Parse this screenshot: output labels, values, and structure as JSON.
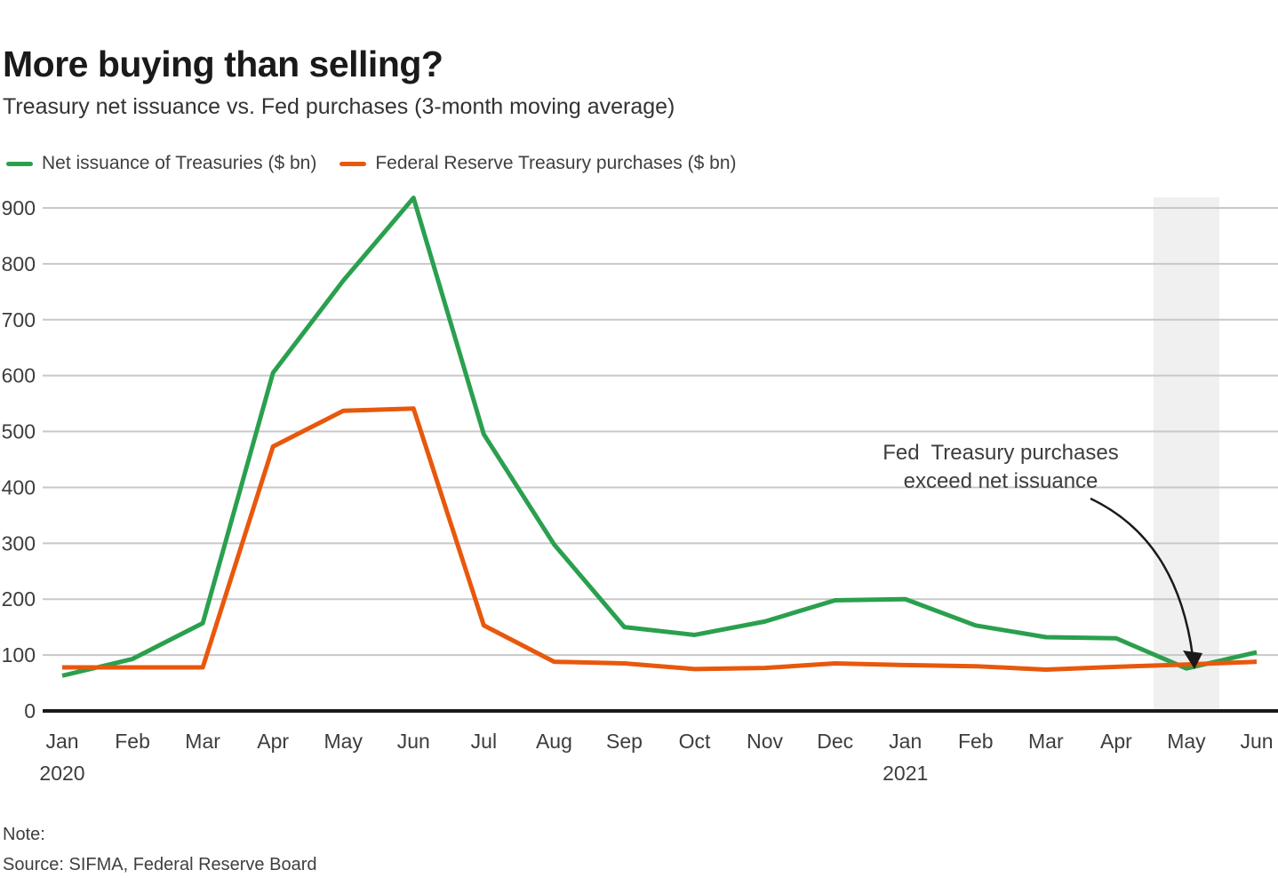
{
  "header": {
    "title": "More buying than selling?",
    "subtitle": "Treasury net issuance vs. Fed purchases (3-month moving average)"
  },
  "chart_data": {
    "type": "line",
    "x": [
      "Jan 2020",
      "Feb",
      "Mar",
      "Apr",
      "May",
      "Jun",
      "Jul",
      "Aug",
      "Sep",
      "Oct",
      "Nov",
      "Dec",
      "Jan 2021",
      "Feb",
      "Mar",
      "Apr",
      "May",
      "Jun"
    ],
    "series": [
      {
        "name": "Net issuance of Treasuries ($ bn)",
        "color": "#2aa04e",
        "values": [
          63,
          93,
          157,
          605,
          770,
          918,
          495,
          298,
          150,
          136,
          160,
          198,
          200,
          153,
          132,
          130,
          76,
          105
        ]
      },
      {
        "name": "Federal Reserve Treasury purchases ($ bn)",
        "color": "#e8580c",
        "values": [
          78,
          78,
          78,
          473,
          537,
          541,
          153,
          88,
          85,
          75,
          77,
          85,
          82,
          80,
          74,
          79,
          83,
          88
        ]
      }
    ],
    "ylim": [
      0,
      920
    ],
    "yticks": [
      0,
      100,
      200,
      300,
      400,
      500,
      600,
      700,
      800,
      900
    ],
    "grid": true,
    "legend_position": "top",
    "highlight_band": {
      "center_index": 16
    },
    "annotation": {
      "line1": "Fed  Treasury purchases",
      "line2": "exceed net issuance",
      "points_to_index": 16
    },
    "colors": {
      "grid": "#c8c8c8",
      "axis": "#1a1a1a",
      "band": "#f0f0f0",
      "annotation": "#3d3d3d",
      "arrow": "#1a1a1a"
    }
  },
  "footer": {
    "note_label": "Note:",
    "source": "Source: SIFMA, Federal Reserve Board"
  }
}
